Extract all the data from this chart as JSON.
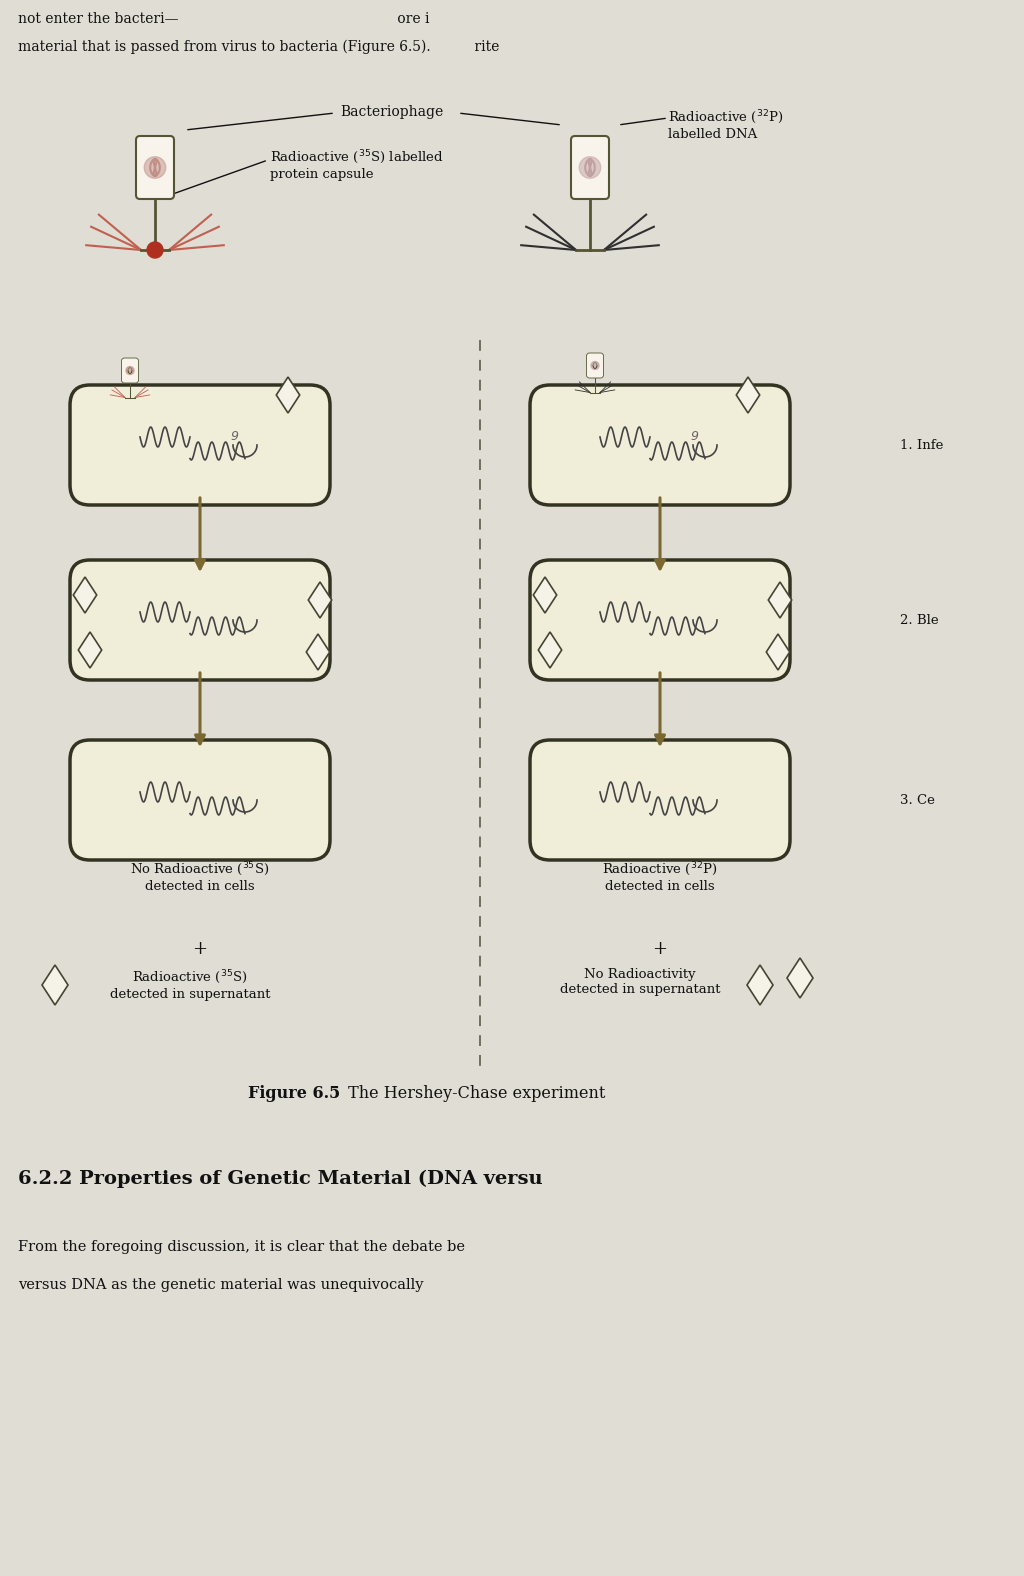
{
  "bg_color": "#e0ddd5",
  "text_color": "#111111",
  "arrow_color": "#7a6830",
  "label_bacteriophage": "Bacteriophage",
  "label_35s": "Radioactive ($^{35}$S) labelled\nprotein capsule",
  "label_32p": "Radioactive ($^{32}$P)\nlabelled DNA",
  "left_r1": "No Radioactive ($^{35}$S)\ndetected in cells",
  "left_r2": "+",
  "left_r3": "Radioactive ($^{35}$S)\ndetected in supernatant",
  "right_r1": "Radioactive ($^{32}$P)\ndetected in cells",
  "right_r2": "+",
  "right_r3": "No Radioactivity\ndetected in supernatant",
  "fig_bold": "Figure 6.5",
  "fig_rest": " The Hershey-Chase experiment",
  "sec_head": "6.2.2 Properties of Genetic Material (DNA versu",
  "body1": "From the foregoing discussion, it is clear that the debate be",
  "body2": "versus DNA as the genetic material was unequivocally",
  "side1": "1. Infe",
  "side2": "2. Ble",
  "side3": "3. Ce",
  "phage_head_fc": "#f8f4ec",
  "phage_head_ec": "#555533",
  "phage_inner_left": "#c09088",
  "phage_inner_right": "#c0a0a0",
  "phage_leg_left": "#c06050",
  "phage_leg_right": "#303030",
  "phage_node_left": "#b03020",
  "phage_node_right": "#282828",
  "bact_fc": "#f0edd8",
  "bact_ec": "#333322",
  "dna_color": "#444444",
  "div_color": "#666655",
  "diamond_fc": "#f5f2e8",
  "diamond_ec": "#444433"
}
